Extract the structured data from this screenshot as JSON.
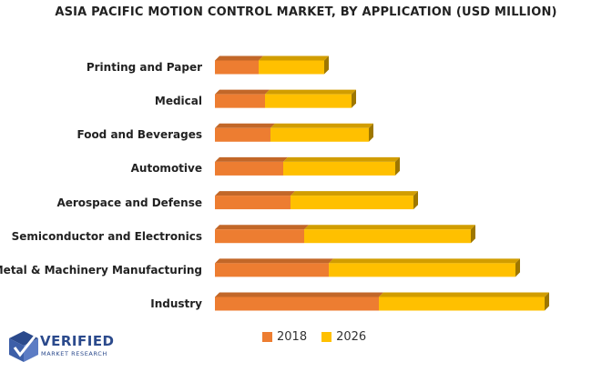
{
  "chart_data": {
    "type": "bar",
    "orientation": "horizontal",
    "stacked": true,
    "title": "ASIA PACIFIC MOTION CONTROL MARKET, BY APPLICATION (USD MILLION)",
    "categories": [
      "Printing and Paper",
      "Medical",
      "Food and Beverages",
      "Automotive",
      "Aerospace and Defense",
      "Semiconductor and Electronics",
      "Metal & Machinery Manufacturing",
      "Industry"
    ],
    "series": [
      {
        "name": "2018",
        "color": "#ED7D31",
        "values": [
          48,
          55,
          61,
          75,
          83,
          98,
          125,
          180
        ]
      },
      {
        "name": "2026",
        "color": "#FFC000",
        "values": [
          72,
          95,
          108,
          123,
          135,
          183,
          205,
          182
        ]
      }
    ],
    "legend_position": "bottom",
    "grid": false,
    "xlim": [
      0,
      380
    ]
  },
  "logo": {
    "main": "VERIFIED",
    "sub": "MARKET RESEARCH"
  }
}
